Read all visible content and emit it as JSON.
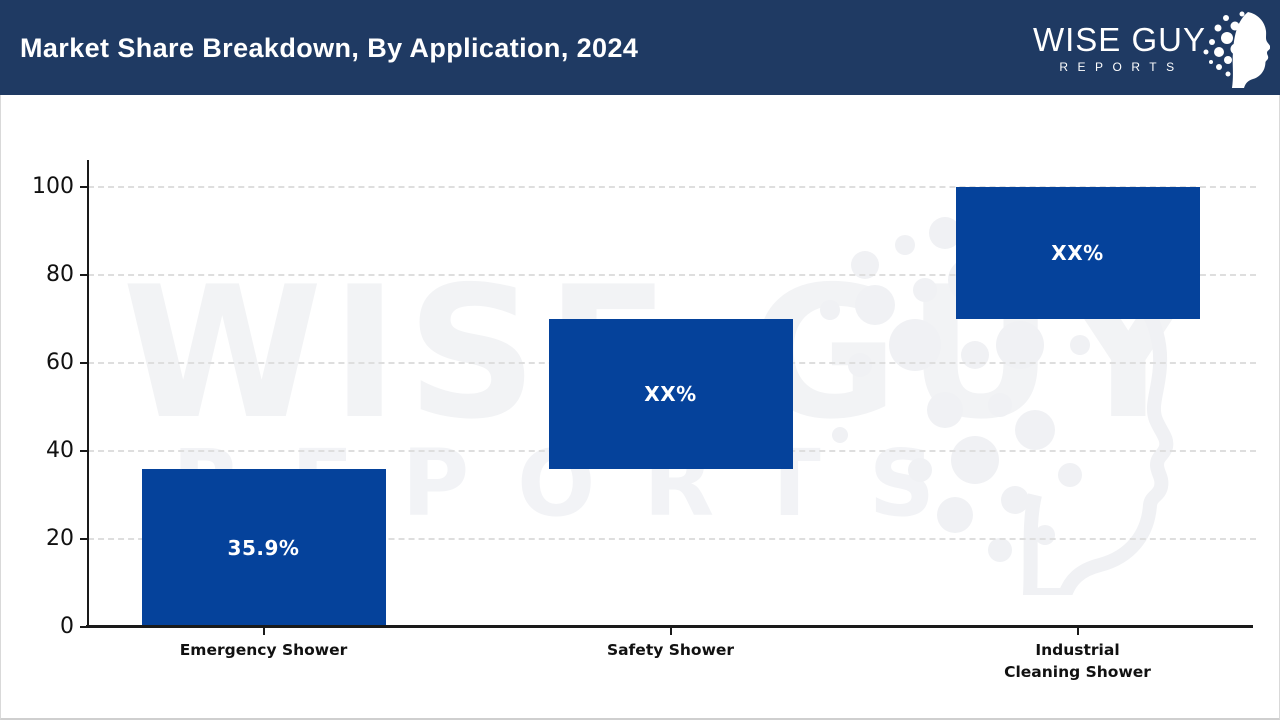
{
  "header": {
    "title": "Market Share Breakdown, By Application, 2024"
  },
  "logo": {
    "line1": "WISE GUY",
    "line2": "REPORTS"
  },
  "watermark": {
    "line1": "WISE GUY",
    "line2": "REPORTS"
  },
  "chart_data": {
    "type": "bar",
    "subtype": "waterfall",
    "title": "Market Share Breakdown, By Application, 2024",
    "categories": [
      "Emergency Shower",
      "Safety Shower",
      "Industrial\nCleaning Shower"
    ],
    "segments": [
      {
        "category": "Emergency Shower",
        "from": 0,
        "to": 35.9,
        "label": "35.9%"
      },
      {
        "category": "Safety Shower",
        "from": 35.9,
        "to": 69.8,
        "label": "XX%"
      },
      {
        "category": "Industrial Cleaning Shower",
        "from": 69.8,
        "to": 100,
        "label": "XX%"
      }
    ],
    "ylim": [
      0,
      100
    ],
    "y_ticks": [
      0,
      20,
      40,
      60,
      80,
      100
    ],
    "grid": "dashed-horizontal",
    "legend": "none",
    "bar_color": "#05429b",
    "bar_label_color": "#ffffff"
  },
  "colors": {
    "header_bg": "#1f3a63",
    "axis": "#1a1a1a",
    "watermark": "#f2f3f5"
  }
}
